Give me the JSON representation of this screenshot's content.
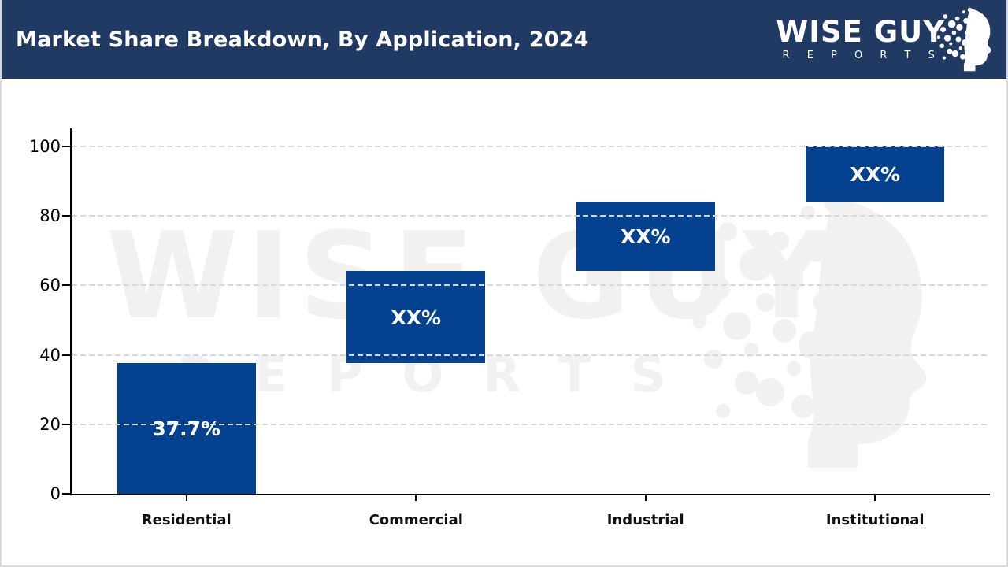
{
  "header": {
    "title": "Market Share Breakdown, By Application, 2024"
  },
  "logo": {
    "line1": "WISE GUY",
    "line2": "R E P O R T S"
  },
  "watermark": {
    "line1": "WISE GUY",
    "line2": "REPORTS"
  },
  "colors": {
    "header_bg": "#213a64",
    "bar": "#04418f",
    "grid": "#d8d8d8",
    "axis": "#000000",
    "watermark": "#f1f1f2",
    "frame_border": "#d9d9d9",
    "bar_label": "#ffffff"
  },
  "chart_data": {
    "type": "bar",
    "variant": "waterfall",
    "title": "Market Share Breakdown, By Application, 2024",
    "categories": [
      "Residential",
      "Commercial",
      "Industrial",
      "Institutional"
    ],
    "segments": [
      {
        "category": "Residential",
        "label": "37.7%",
        "start": 0,
        "end": 37.7
      },
      {
        "category": "Commercial",
        "label": "XX%",
        "start": 37.7,
        "end": 64.1
      },
      {
        "category": "Industrial",
        "label": "XX%",
        "start": 64.1,
        "end": 84.1
      },
      {
        "category": "Institutional",
        "label": "XX%",
        "start": 84.1,
        "end": 100
      }
    ],
    "xlabel": "",
    "ylabel": "",
    "ylim": [
      0,
      105
    ],
    "yticks": [
      0,
      20,
      40,
      60,
      80,
      100
    ],
    "grid": "horizontal dashed, drawn above bars",
    "legend": null
  }
}
